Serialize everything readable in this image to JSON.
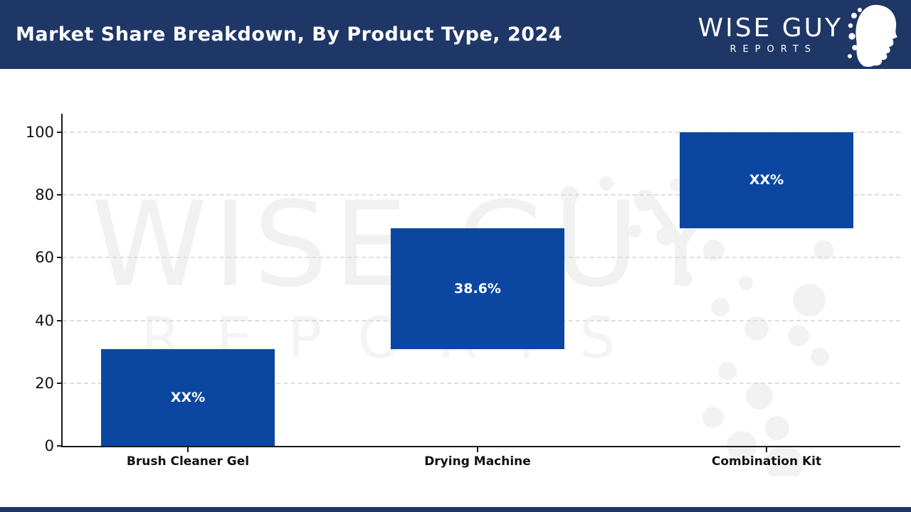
{
  "header": {
    "title": "Market Share Breakdown, By Product Type, 2024",
    "logo": {
      "line1": "WISE GUY",
      "line2": "REPORTS"
    }
  },
  "watermark": {
    "line1": "WISE GUY",
    "line2": "REPORTS"
  },
  "colors": {
    "header_bg": "#1f3766",
    "footer_bg": "#1f3766",
    "bar": "#0b47a1",
    "bar_label": "#ffffff",
    "grid": "#dedede",
    "axis": "#1a1a1a",
    "watermark": "#f1f1f1"
  },
  "chart_data": {
    "type": "waterfall",
    "title": "Market Share Breakdown, By Product Type, 2024",
    "categories": [
      "Brush Cleaner Gel",
      "Drying Machine",
      "Combination Kit"
    ],
    "segments": [
      {
        "category": "Brush Cleaner Gel",
        "start": 0,
        "end": 30.8,
        "label": "XX%"
      },
      {
        "category": "Drying Machine",
        "start": 30.8,
        "end": 69.4,
        "label": "38.6%"
      },
      {
        "category": "Combination Kit",
        "start": 69.4,
        "end": 100,
        "label": "XX%"
      }
    ],
    "yticks": [
      0,
      20,
      40,
      60,
      80,
      100
    ],
    "ylim": [
      0,
      106
    ],
    "grid": "horizontal dashed",
    "legend": "none",
    "bar_color": "#0b47a1"
  }
}
